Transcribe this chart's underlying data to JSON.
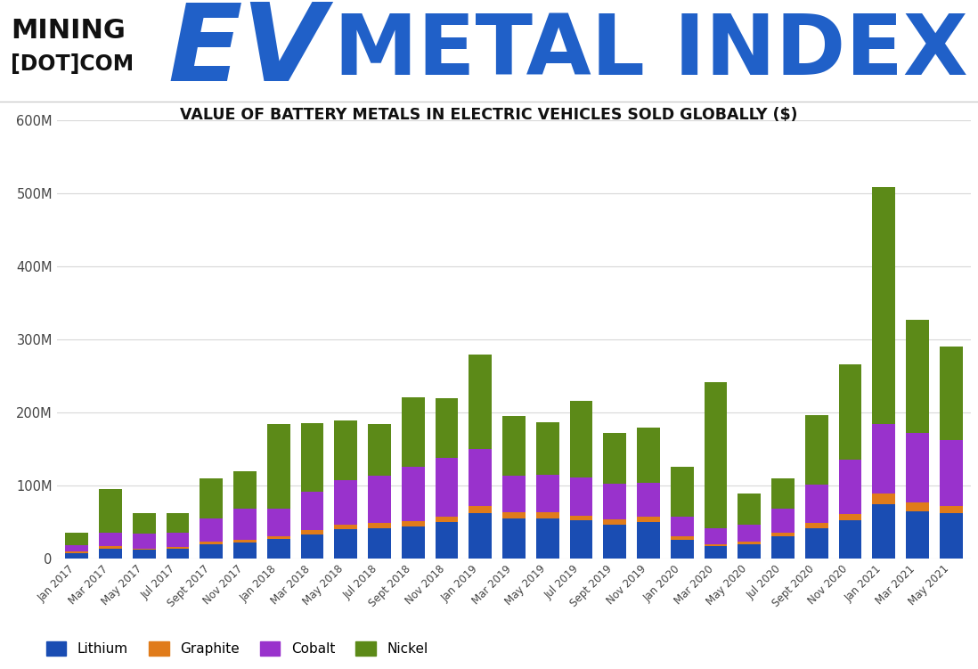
{
  "title": "VALUE OF BATTERY METALS IN ELECTRIC VEHICLES SOLD GLOBALLY ($)",
  "categories": [
    "Jan 2017",
    "Mar 2017",
    "May 2017",
    "Jul 2017",
    "Sept 2017",
    "Nov 2017",
    "Jan 2018",
    "Mar 2018",
    "May 2018",
    "Jul 2018",
    "Sept 2018",
    "Nov 2018",
    "Jan 2019",
    "Mar 2019",
    "May 2019",
    "Jul 2019",
    "Sept 2019",
    "Nov 2019",
    "Jan 2020",
    "Mar 2020",
    "May 2020",
    "Jul 2020",
    "Sept 2020",
    "Nov 2020",
    "Jan 2021",
    "Mar 2021",
    "May 2021"
  ],
  "lithium": [
    8,
    14,
    12,
    14,
    20,
    22,
    27,
    33,
    40,
    42,
    44,
    50,
    62,
    55,
    55,
    52,
    47,
    50,
    26,
    17,
    20,
    30,
    42,
    52,
    75,
    65,
    62
  ],
  "graphite": [
    2,
    3,
    2,
    2,
    3,
    4,
    4,
    6,
    7,
    7,
    7,
    8,
    10,
    8,
    8,
    7,
    7,
    8,
    4,
    3,
    3,
    5,
    7,
    9,
    14,
    12,
    10
  ],
  "cobalt": [
    8,
    18,
    20,
    20,
    32,
    42,
    38,
    52,
    60,
    65,
    75,
    80,
    78,
    50,
    52,
    52,
    48,
    46,
    28,
    22,
    24,
    33,
    52,
    75,
    95,
    95,
    90
  ],
  "nickel": [
    18,
    60,
    28,
    26,
    55,
    52,
    115,
    95,
    82,
    70,
    95,
    82,
    130,
    82,
    72,
    105,
    70,
    75,
    68,
    200,
    42,
    42,
    95,
    130,
    325,
    155,
    128
  ],
  "colors": {
    "lithium": "#1a4db3",
    "graphite": "#e07b1a",
    "cobalt": "#9932cc",
    "nickel": "#5c8a18"
  },
  "ylim_max": 600000000,
  "ytick_values": [
    0,
    100000000,
    200000000,
    300000000,
    400000000,
    500000000,
    600000000
  ],
  "ytick_labels": [
    "0",
    "100M",
    "200M",
    "300M",
    "400M",
    "500M",
    "600M"
  ],
  "grid_color": "#d8d8d8",
  "logo_black": "#111111",
  "logo_blue": "#2060c8",
  "header_bg": "#ffffff",
  "legend_labels": [
    "Lithium",
    "Graphite",
    "Cobalt",
    "Nickel"
  ]
}
